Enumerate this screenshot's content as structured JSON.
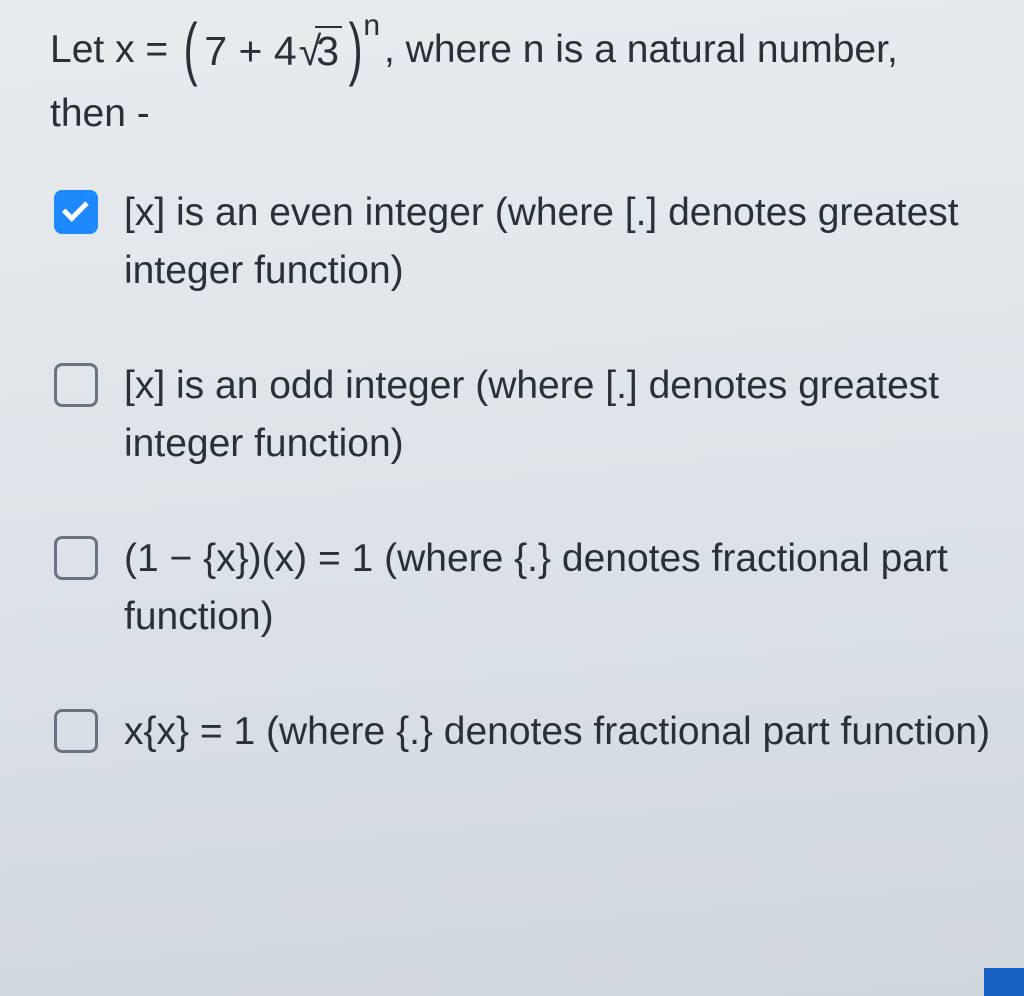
{
  "question": {
    "lead_in": "Let",
    "var": "x",
    "equals": "=",
    "inner_expr_1": "7 + 4",
    "sqrt_arg": "3",
    "exponent": "n",
    "tail": ", where n is a natural number, then -"
  },
  "options": [
    {
      "checked": true,
      "text": "[x] is an even integer (where [.] denotes greatest integer function)"
    },
    {
      "checked": false,
      "text": "[x] is an odd integer (where [.] denotes greatest integer function)"
    },
    {
      "checked": false,
      "text": "(1 − {x})(x) = 1  (where {.} denotes fractional part function)"
    },
    {
      "checked": false,
      "text": "x{x} = 1  (where {.} denotes fractional part function)"
    }
  ],
  "colors": {
    "checkbox_checked_bg": "#1e88ff",
    "checkbox_border": "#6a7480",
    "text": "#2a3038",
    "corner_tab": "#1560c0"
  }
}
